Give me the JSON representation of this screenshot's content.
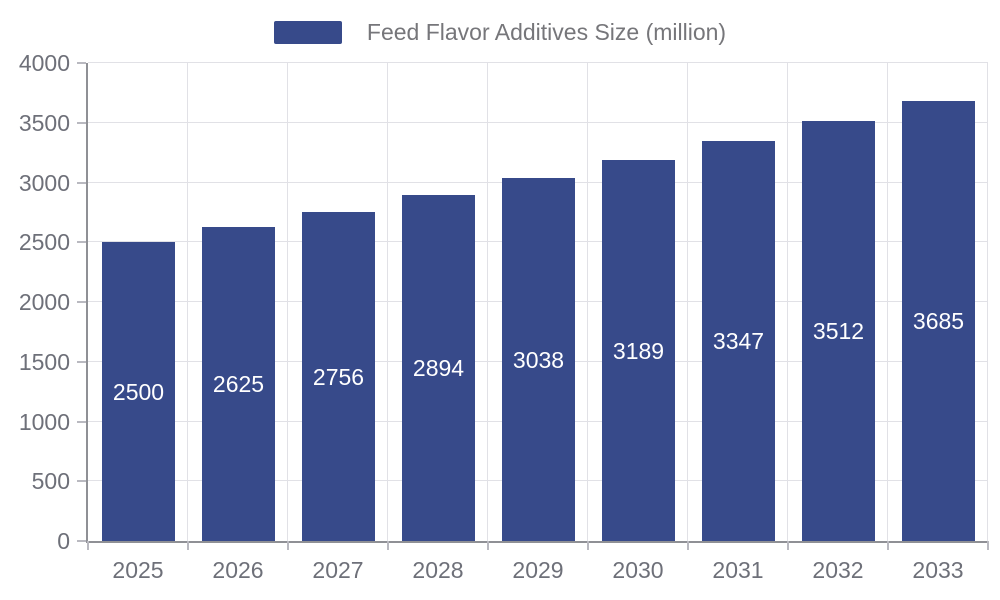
{
  "chart_data": {
    "type": "bar",
    "title": "Feed Flavor Additives Size (million)",
    "legend": [
      "Feed Flavor Additives Size (million)"
    ],
    "legend_position": "top",
    "categories": [
      "2025",
      "2026",
      "2027",
      "2028",
      "2029",
      "2030",
      "2031",
      "2032",
      "2033"
    ],
    "values": [
      2500,
      2625,
      2756,
      2894,
      3038,
      3189,
      3347,
      3512,
      3685
    ],
    "value_labels": [
      "2500",
      "2625",
      "2756",
      "2894",
      "3038",
      "3189",
      "3347",
      "3512",
      "3685"
    ],
    "xlabel": "",
    "ylabel": "",
    "ylim": [
      0,
      4000
    ],
    "ytick_step": 500,
    "ytick_labels": [
      "0",
      "500",
      "1000",
      "1500",
      "2000",
      "2500",
      "3000",
      "3500",
      "4000"
    ],
    "grid": true
  },
  "colors": {
    "bar": "#374a8a",
    "bar_value_text": "#ffffff",
    "grid_line": "#e1e1e6",
    "axis_line": "#8f9095",
    "tick": "#b9b9c0",
    "axis_label_text": "#6e7079",
    "legend_text": "#76767a"
  }
}
